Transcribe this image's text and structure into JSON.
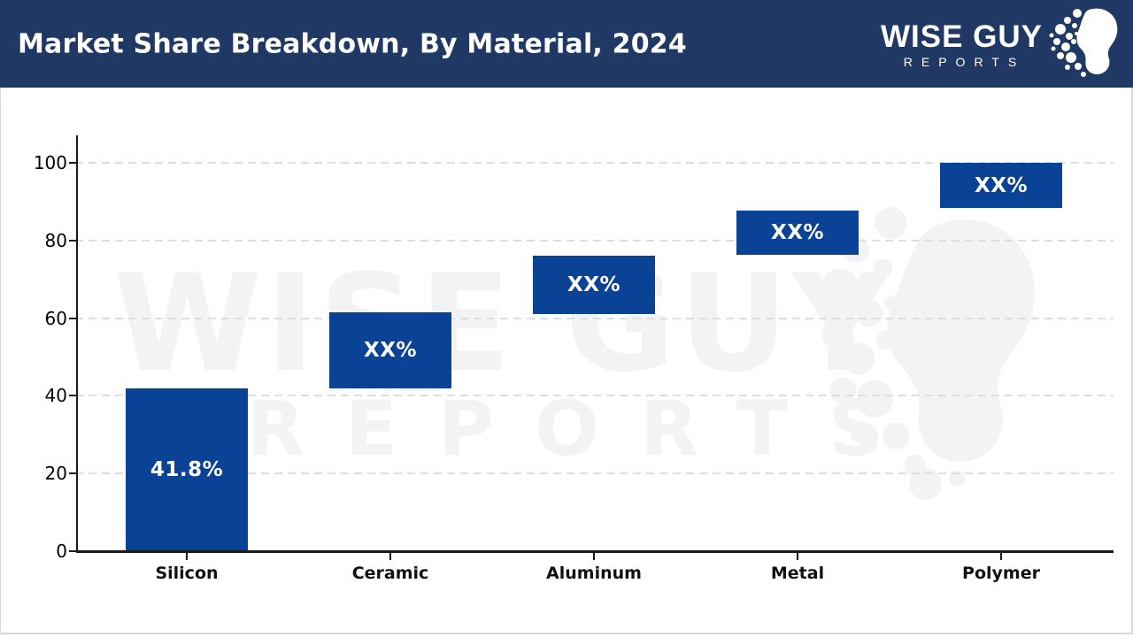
{
  "header": {
    "title": "Market Share Breakdown, By Material, 2024",
    "logo": {
      "line1": "WISE GUY",
      "line2": "REPORTS"
    }
  },
  "watermark": {
    "line1": "WISE GUY",
    "line2": "REPORTS"
  },
  "colors": {
    "header_bg": "#1f3864",
    "bar": "#0a4296",
    "bar_label": "#ffffff",
    "grid": "#dedede",
    "axis": "#1a1a1a",
    "watermark": "#f2f3f5",
    "page_border": "#d9d9d9",
    "background": "#ffffff"
  },
  "chart_data": {
    "type": "bar",
    "subtype": "waterfall",
    "title": "Market Share Breakdown, By Material, 2024",
    "xlabel": "",
    "ylabel": "",
    "categories": [
      "Silicon",
      "Ceramic",
      "Aluminum",
      "Metal",
      "Polymer"
    ],
    "bars": [
      {
        "category": "Silicon",
        "start": 0,
        "end": 41.8,
        "label": "41.8%"
      },
      {
        "category": "Ceramic",
        "start": 41.8,
        "end": 61.4,
        "label": "XX%"
      },
      {
        "category": "Aluminum",
        "start": 61.0,
        "end": 76.0,
        "label": "XX%"
      },
      {
        "category": "Metal",
        "start": 76.2,
        "end": 87.8,
        "label": "XX%"
      },
      {
        "category": "Polymer",
        "start": 88.4,
        "end": 99.9,
        "label": "XX%"
      }
    ],
    "yticks": [
      0,
      20,
      40,
      60,
      80,
      100
    ],
    "ylim": [
      0,
      107
    ],
    "grid": "dashed-horizontal",
    "legend": "none"
  }
}
